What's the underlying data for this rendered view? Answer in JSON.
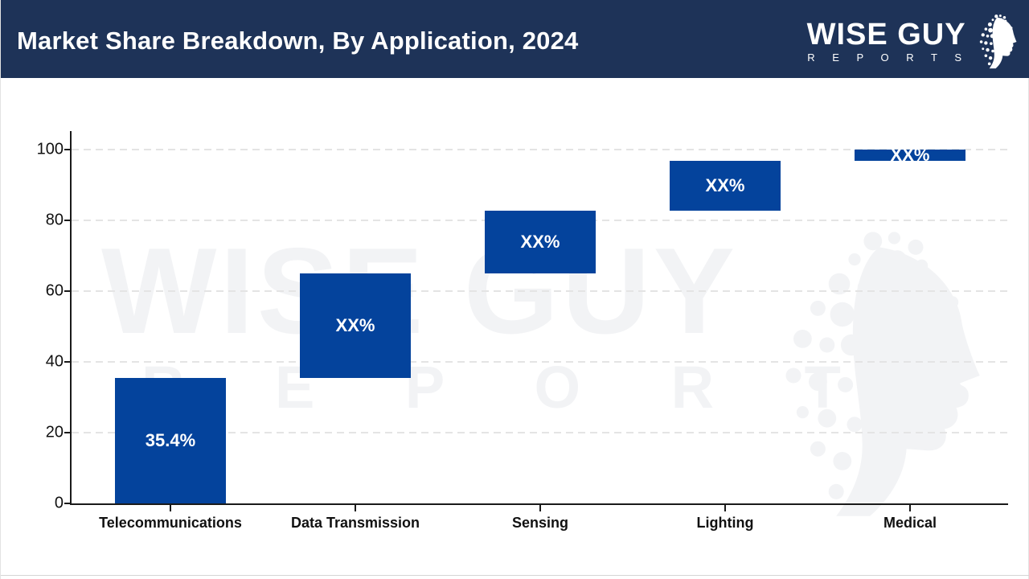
{
  "header": {
    "title": "Market Share Breakdown, By Application, 2024",
    "background_color": "#1e3358",
    "logo": {
      "line1": "WISE GUY",
      "line2": "R E P O R T S"
    }
  },
  "watermark": {
    "line1": "WISE GUY",
    "line2": "R E P O R T S"
  },
  "chart_data": {
    "type": "bar",
    "subtype": "waterfall",
    "title": "Market Share Breakdown, By Application, 2024",
    "categories": [
      "Telecommunications",
      "Data Transmission",
      "Sensing",
      "Lighting",
      "Medical"
    ],
    "segments": [
      {
        "category": "Telecommunications",
        "start": 0,
        "end": 35.4,
        "label": "35.4%"
      },
      {
        "category": "Data Transmission",
        "start": 35.4,
        "end": 64.9,
        "label": "XX%"
      },
      {
        "category": "Sensing",
        "start": 64.9,
        "end": 82.6,
        "label": "XX%"
      },
      {
        "category": "Lighting",
        "start": 82.6,
        "end": 96.6,
        "label": "XX%"
      },
      {
        "category": "Medical",
        "start": 96.6,
        "end": 100,
        "label": "XX%"
      }
    ],
    "yticks": [
      0,
      20,
      40,
      60,
      80,
      100
    ],
    "ylim": [
      0,
      105
    ],
    "grid": "dashed-horizontal",
    "legend": "none",
    "bar_color": "#04439c",
    "bar_label_color": "#ffffff"
  }
}
